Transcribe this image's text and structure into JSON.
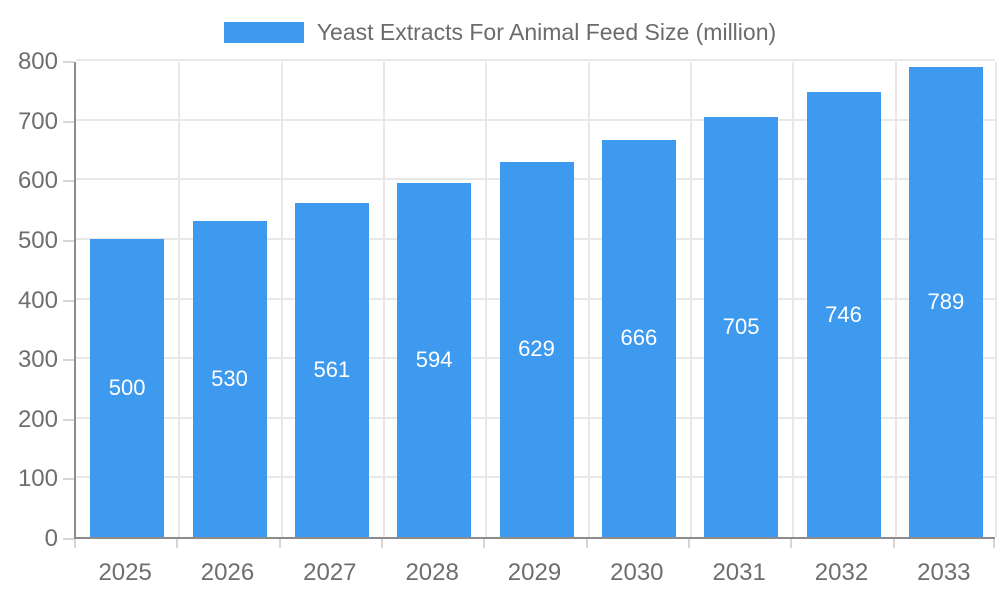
{
  "chart_data": {
    "type": "bar",
    "title": "Yeast Extracts For Animal Feed Size (million)",
    "categories": [
      "2025",
      "2026",
      "2027",
      "2028",
      "2029",
      "2030",
      "2031",
      "2032",
      "2033"
    ],
    "values": [
      500,
      530,
      561,
      594,
      629,
      666,
      705,
      746,
      789
    ],
    "xlabel": "",
    "ylabel": "",
    "ylim": [
      0,
      800
    ],
    "yticks": [
      0,
      100,
      200,
      300,
      400,
      500,
      600,
      700,
      800
    ],
    "grid": true,
    "legend_position": "top",
    "value_labels": "inside-center-white",
    "colors": {
      "bar": "#3D9AEE",
      "value_label": "#FFFFFF",
      "grid_line": "#E8E8E8",
      "axis_line": "#8C8C8C",
      "tick_line": "#D6D6D6",
      "axis_label": "#6E6E6E",
      "title_text": "#6B6B6B",
      "background": "#FFFFFF"
    }
  }
}
